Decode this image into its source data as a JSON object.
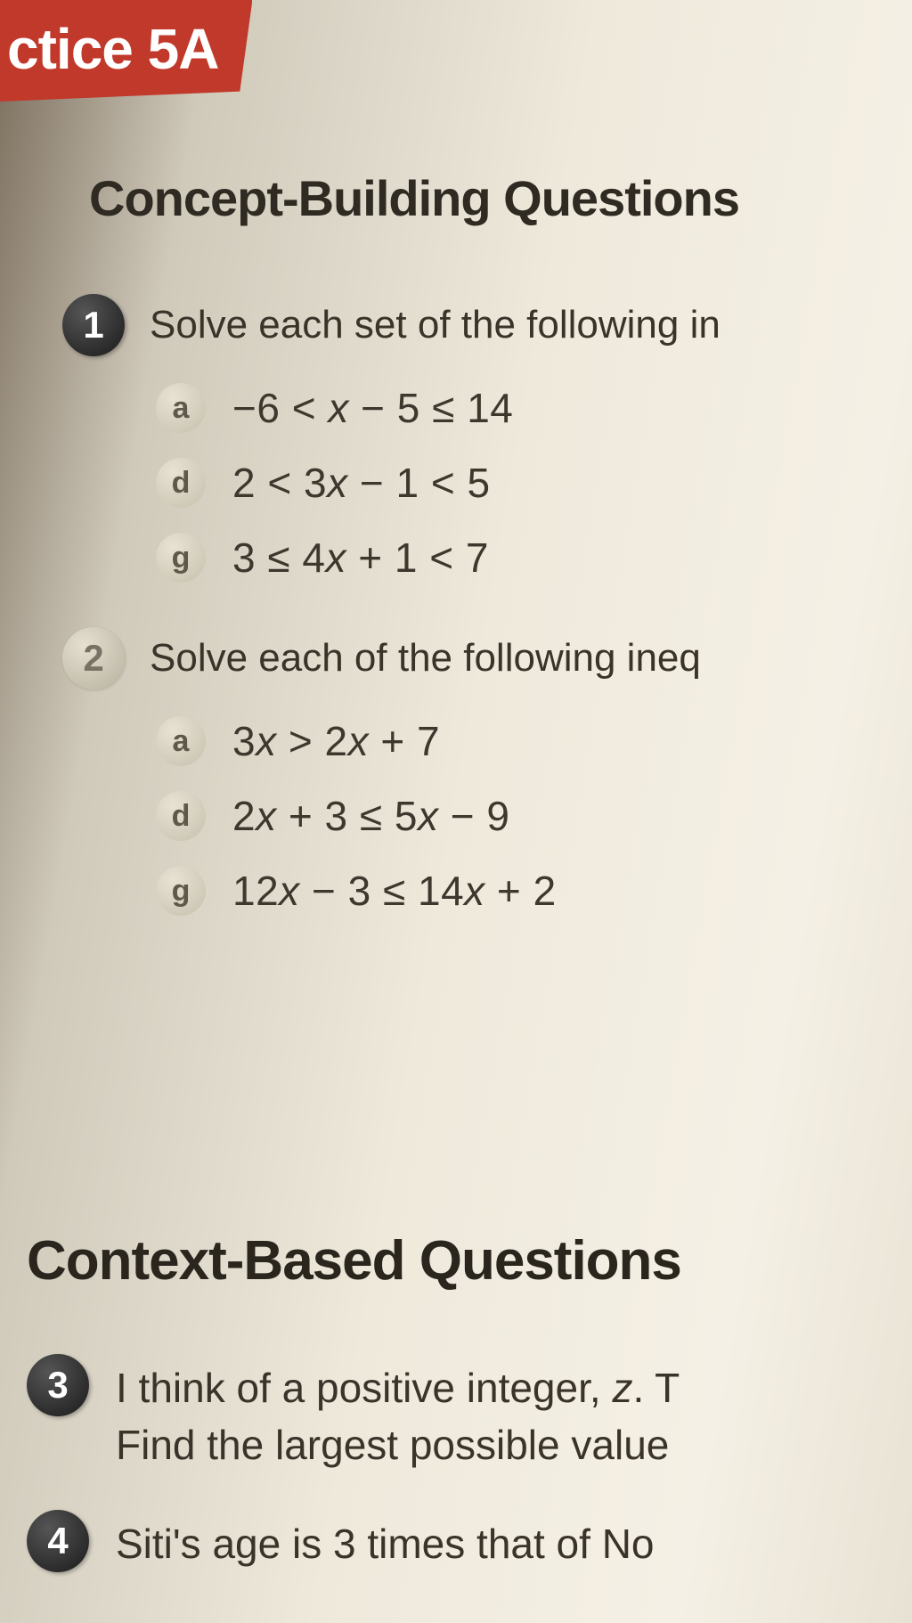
{
  "colors": {
    "tab_bg": "#c1392b",
    "tab_text": "#ffffff",
    "page_bg_light": "#efe9dc",
    "page_bg_dark": "#7a6d5c",
    "heading": "#2f2a22",
    "body_text": "#3a332a",
    "badge_dark_bg": "#2c2c2c",
    "badge_dark_text": "#ffffff",
    "badge_light_bg": "#d2ccbb",
    "badge_light_text": "#5f594c"
  },
  "typography": {
    "tab_fontsize": 64,
    "section_title_fontsize": 56,
    "section2_title_fontsize": 62,
    "prompt_fontsize": 44,
    "expr_fontsize": 46,
    "ctx_fontsize": 46,
    "badge_num_fontsize": 42,
    "badge_part_fontsize": 34
  },
  "chapter_tab": "ctice 5A",
  "section1_title": "Concept-Building Questions",
  "q1": {
    "num": "1",
    "prompt": "Solve each set of the following in",
    "parts": {
      "a": {
        "label": "a",
        "expr": "−6 < x − 5 ≤ 14"
      },
      "d": {
        "label": "d",
        "expr": "2 < 3x − 1 < 5"
      },
      "g": {
        "label": "g",
        "expr": "3 ≤ 4x + 1 < 7"
      }
    }
  },
  "q2": {
    "num": "2",
    "prompt": "Solve each of the following ineq",
    "parts": {
      "a": {
        "label": "a",
        "expr": "3x > 2x + 7"
      },
      "d": {
        "label": "d",
        "expr": "2x + 3 ≤ 5x − 9"
      },
      "g": {
        "label": "g",
        "expr": "12x − 3 ≤ 14x + 2"
      }
    }
  },
  "section2_title": "Context-Based Questions",
  "q3": {
    "num": "3",
    "line1": "I think of a positive integer, z. T",
    "line2": "Find the largest possible value"
  },
  "q4": {
    "num": "4",
    "line1": "Siti's age is 3 times that of No"
  }
}
